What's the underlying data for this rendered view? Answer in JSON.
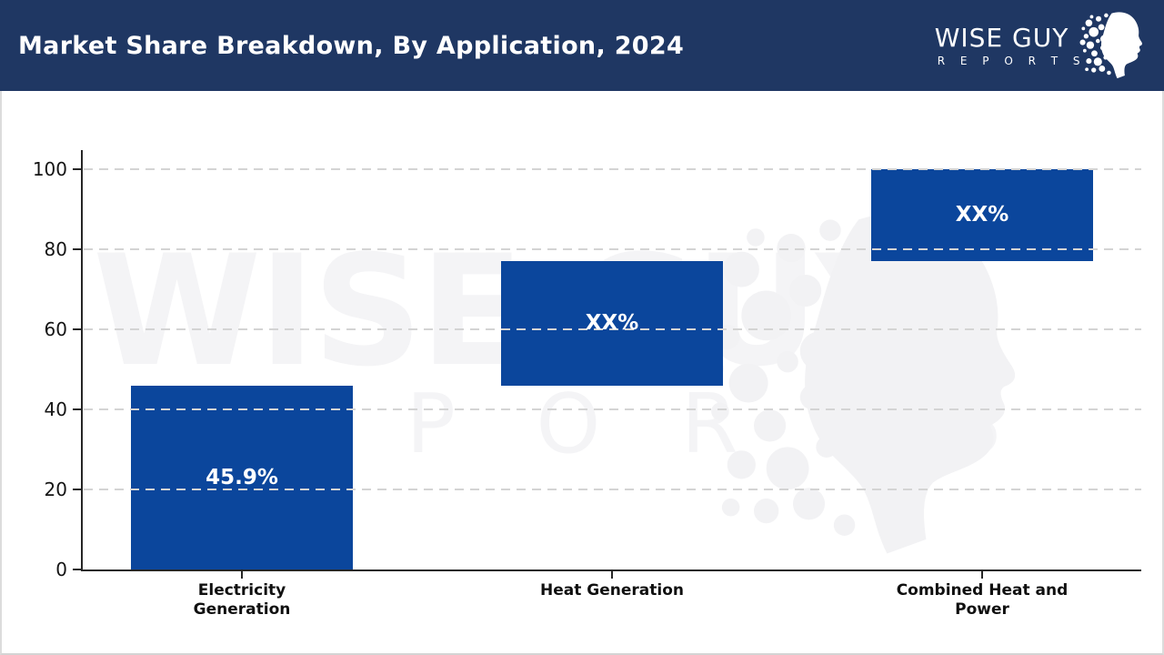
{
  "header": {
    "title": "Market Share Breakdown, By Application, 2024",
    "background_color": "#1F3763",
    "logo": {
      "line1": "WISE GUY",
      "line2": "R E P O R T S",
      "icon": "dotted-face-profile-icon"
    }
  },
  "watermark": {
    "line1": "WISE GUY",
    "line2": "R E P O R T S",
    "icon": "dotted-face-profile-icon"
  },
  "chart_data": {
    "type": "bar",
    "subtype": "floating-segment-waterfall",
    "title": "Market Share Breakdown, By Application, 2024",
    "xlabel": "",
    "ylabel": "",
    "ylim": [
      0,
      100
    ],
    "yticks": [
      0,
      20,
      40,
      60,
      80,
      100
    ],
    "grid": "horizontal-dashed-above-bars",
    "legend": "none",
    "bar_color": "#0B469C",
    "bar_label_color": "#FFFFFF",
    "bars": [
      {
        "category": "Electricity Generation",
        "category_lines": [
          "Electricity",
          "Generation"
        ],
        "start": 0,
        "end": 45.9,
        "estimated_value": 45.9,
        "value_label": "45.9%"
      },
      {
        "category": "Heat Generation",
        "category_lines": [
          "Heat Generation"
        ],
        "start": 45.9,
        "end": 77.1,
        "estimated_value": 31.2,
        "value_label": "XX%"
      },
      {
        "category": "Combined Heat and Power",
        "category_lines": [
          "Combined Heat and",
          "Power"
        ],
        "start": 77.1,
        "end": 100,
        "estimated_value": 22.9,
        "value_label": "XX%"
      }
    ]
  }
}
